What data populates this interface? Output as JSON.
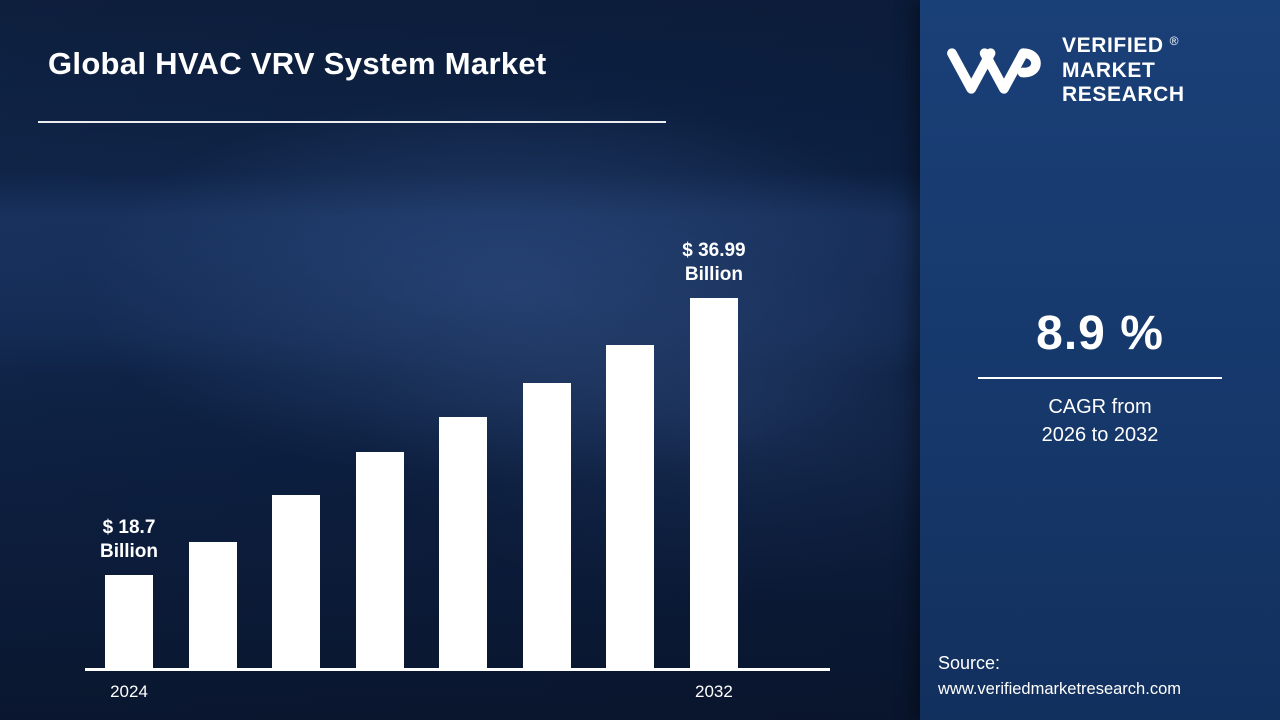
{
  "page": {
    "title": "Global HVAC VRV System Market"
  },
  "chart_data": {
    "type": "bar",
    "categories": [
      "2024",
      "",
      "",
      "",
      "",
      "",
      "",
      "2032"
    ],
    "values": [
      18.7,
      20.9,
      24.0,
      26.8,
      29.1,
      31.4,
      33.9,
      36.99
    ],
    "unit": "USD Billion",
    "bar_color": "#ffffff",
    "annotations": [
      {
        "index": 0,
        "line1": "$ 18.7",
        "line2": "Billion"
      },
      {
        "index": 7,
        "line1": "$ 36.99",
        "line2": "Billion"
      }
    ],
    "title": "Global HVAC VRV System Market",
    "xlabel": "",
    "ylabel": "",
    "ylim": [
      0,
      40
    ],
    "grid": false,
    "legend": false
  },
  "brand": {
    "name_lines": [
      "VERIFIED",
      "MARKET",
      "RESEARCH"
    ],
    "registered_mark": "®",
    "logo_icon": "vmr-monogram"
  },
  "stats": {
    "cagr_value": "8.9 %",
    "cagr_line1": "CAGR from",
    "cagr_line2": "2026  to  2032"
  },
  "source": {
    "label": "Source:",
    "url": "www.verifiedmarketresearch.com"
  },
  "colors": {
    "left_background": "#0e2449",
    "right_background": "#16386b",
    "bar": "#ffffff",
    "text": "#ffffff"
  }
}
